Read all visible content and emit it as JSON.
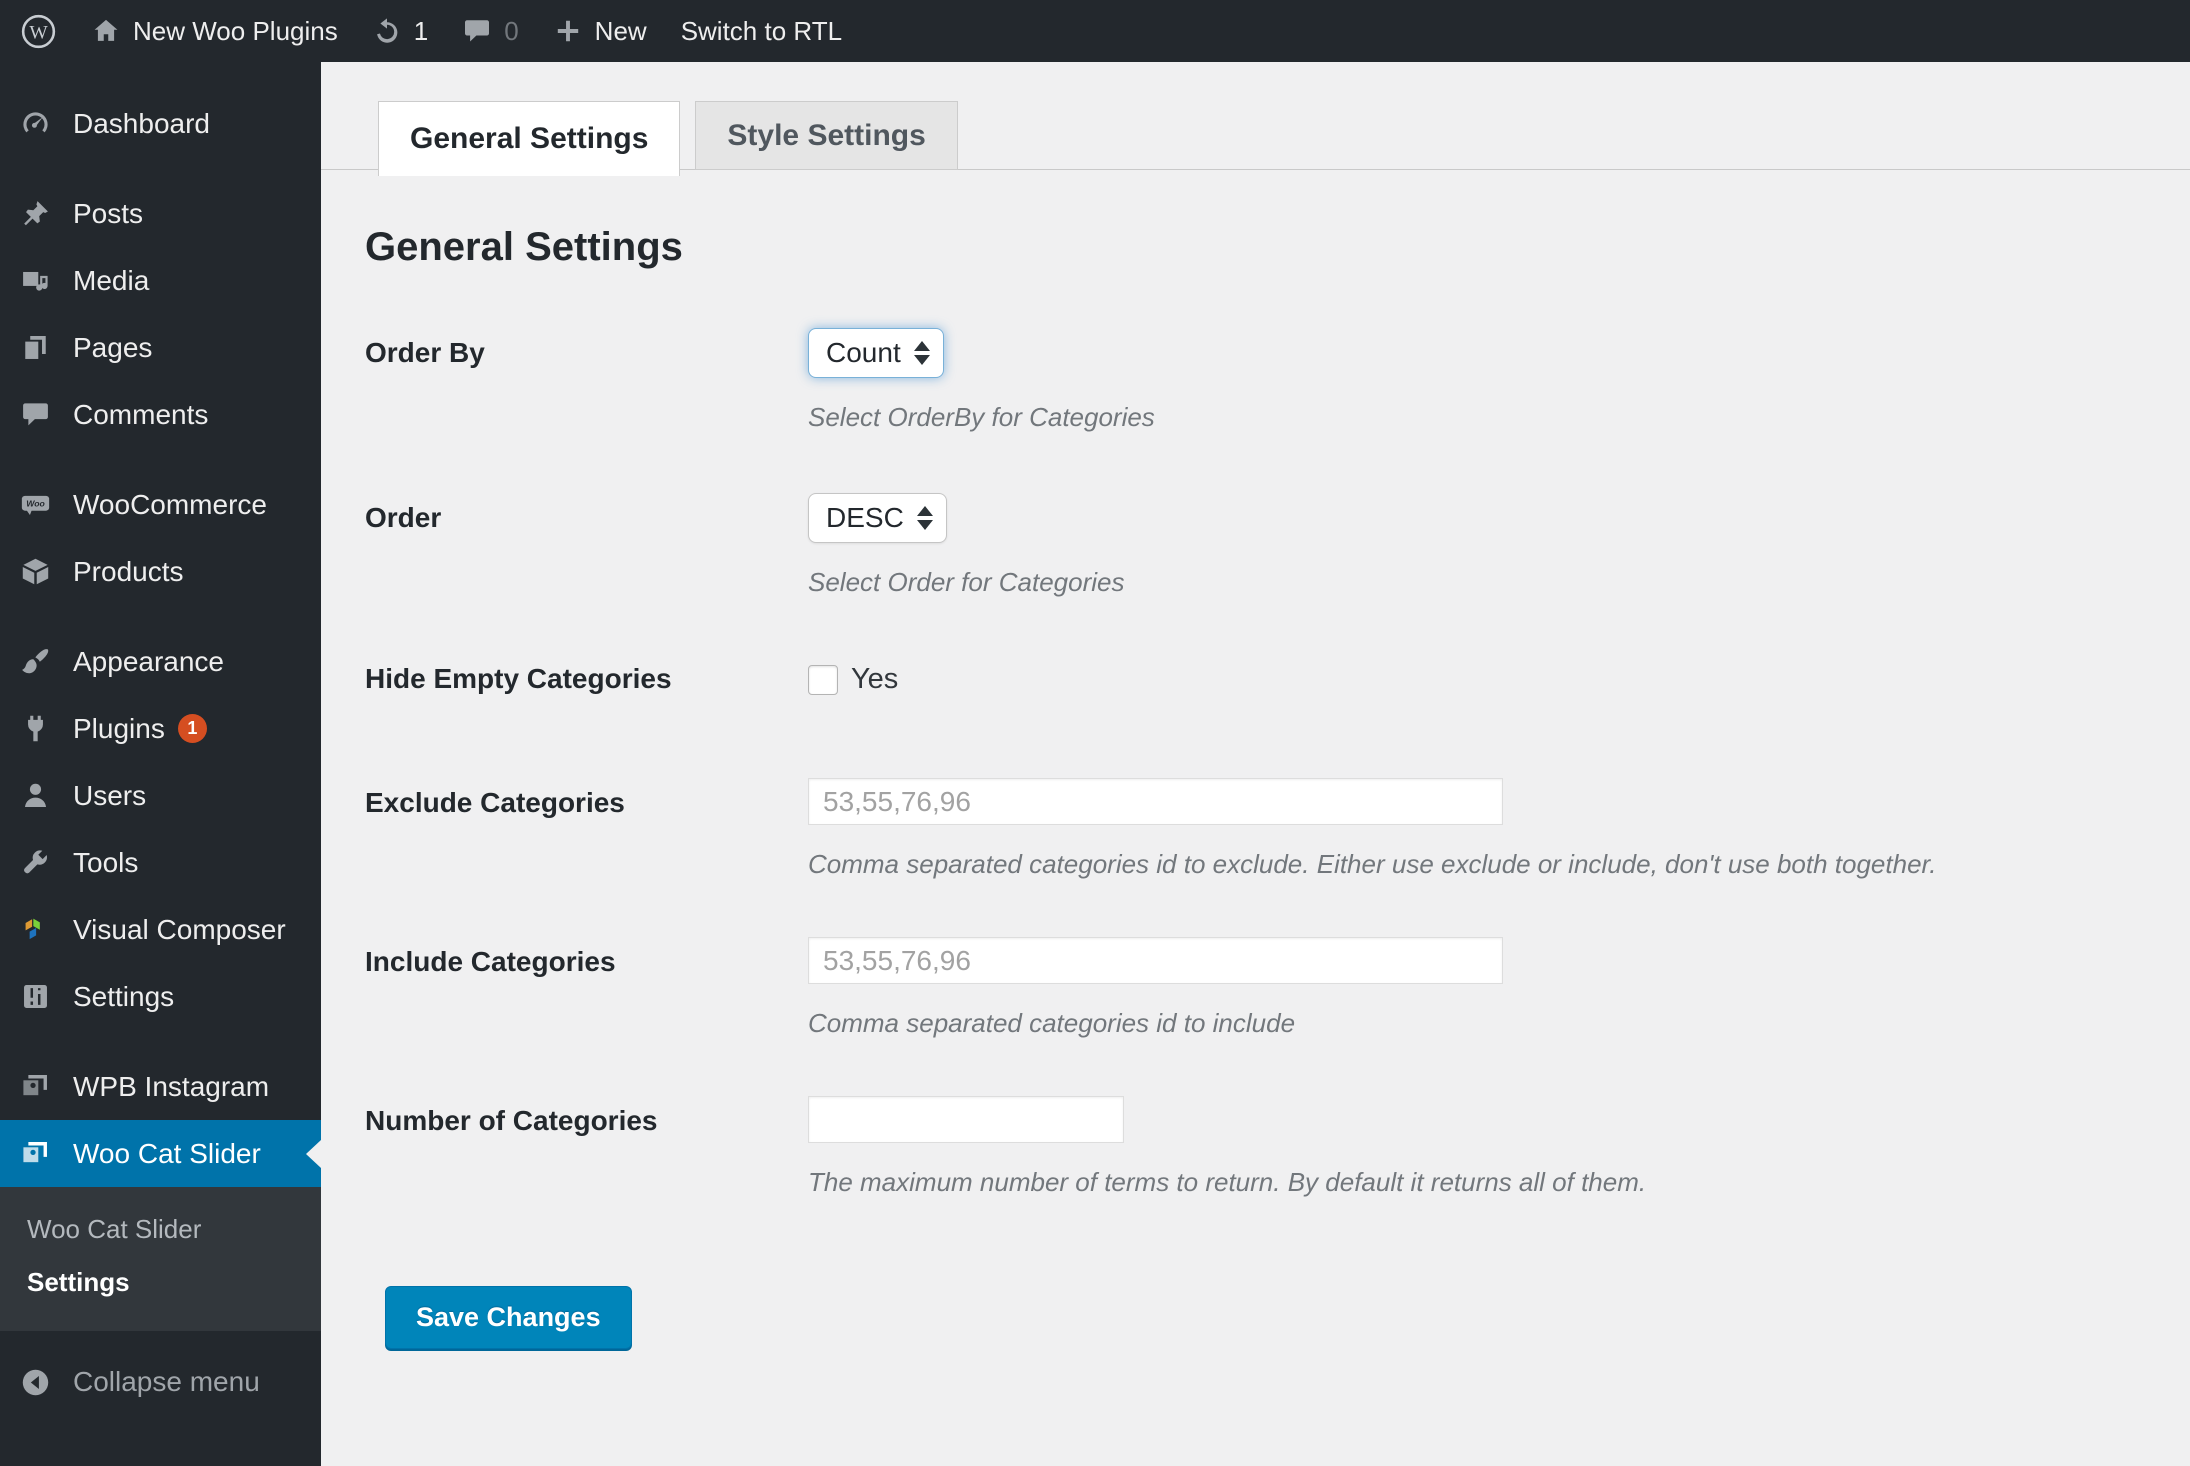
{
  "admin_bar": {
    "site_name": "New Woo Plugins",
    "update_count": "1",
    "comment_count": "0",
    "new_label": "New",
    "rtl_label": "Switch to RTL"
  },
  "sidebar": {
    "items": [
      {
        "label": "Dashboard",
        "icon": "dashboard-icon"
      },
      {
        "label": "Posts",
        "icon": "pushpin-icon",
        "sep": true
      },
      {
        "label": "Media",
        "icon": "media-icon"
      },
      {
        "label": "Pages",
        "icon": "pages-icon"
      },
      {
        "label": "Comments",
        "icon": "comment-bubble-icon"
      },
      {
        "label": "WooCommerce",
        "icon": "woocommerce-icon",
        "sep": true
      },
      {
        "label": "Products",
        "icon": "box-icon"
      },
      {
        "label": "Appearance",
        "icon": "paintbrush-icon",
        "sep": true
      },
      {
        "label": "Plugins",
        "icon": "plug-icon",
        "badge": "1"
      },
      {
        "label": "Users",
        "icon": "user-icon"
      },
      {
        "label": "Tools",
        "icon": "wrench-icon"
      },
      {
        "label": "Visual Composer",
        "icon": "visual-composer-icon"
      },
      {
        "label": "Settings",
        "icon": "sliders-icon"
      },
      {
        "label": "WPB Instagram",
        "icon": "photos-icon",
        "sep": true
      },
      {
        "label": "Woo Cat Slider",
        "icon": "photos-icon",
        "active": true
      }
    ],
    "submenu": [
      {
        "label": "Woo Cat Slider",
        "current": false
      },
      {
        "label": "Settings",
        "current": true
      }
    ],
    "collapse_label": "Collapse menu"
  },
  "tabs": {
    "general": "General Settings",
    "style": "Style Settings"
  },
  "main": {
    "heading": "General Settings",
    "order_by": {
      "label": "Order By",
      "value": "Count",
      "help": "Select OrderBy for Categories"
    },
    "order": {
      "label": "Order",
      "value": "DESC",
      "help": "Select Order for Categories"
    },
    "hide_empty": {
      "label": "Hide Empty Categories",
      "checkbox_label": "Yes",
      "checked": false
    },
    "exclude": {
      "label": "Exclude Categories",
      "value": "",
      "placeholder": "53,55,76,96",
      "help": "Comma separated categories id to exclude. Either use exclude or include, don't use both together."
    },
    "include": {
      "label": "Include Categories",
      "value": "",
      "placeholder": "53,55,76,96",
      "help": "Comma separated categories id to include"
    },
    "number": {
      "label": "Number of Categories",
      "value": "",
      "placeholder": "",
      "help": "The maximum number of terms to return. By default it returns all of them."
    },
    "save_label": "Save Changes"
  },
  "colors": {
    "accent": "#0073aa",
    "button": "#0085ba",
    "badge": "#d54e21",
    "admin_bar_bg": "#23282d",
    "submenu_bg": "#32373c",
    "content_bg": "#f0f0f1"
  }
}
